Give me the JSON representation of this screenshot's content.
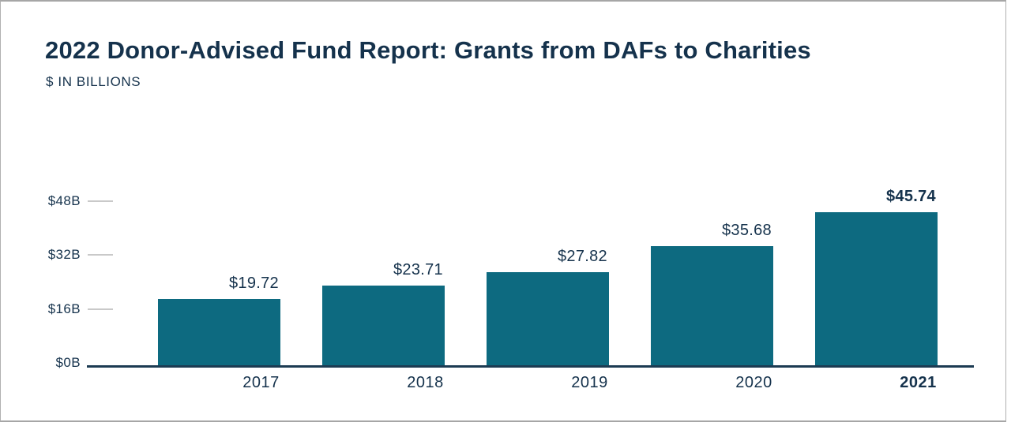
{
  "page": {
    "title": "2022 Donor-Advised Fund Report: Grants from DAFs to Charities",
    "units_label": "$ IN BILLIONS"
  },
  "colors": {
    "bar": "#0d6a80",
    "text": "#15324c",
    "axis_line": "#1c3b52",
    "tick": "#c9c9c9",
    "frame_border": "#b0b0b0"
  },
  "chart_data": {
    "type": "bar",
    "title": "2022 Donor-Advised Fund Report: Grants from DAFs to Charities",
    "subtitle": "$ IN BILLIONS",
    "categories": [
      "2017",
      "2018",
      "2019",
      "2020",
      "2021"
    ],
    "values": [
      19.72,
      23.71,
      27.82,
      35.68,
      45.74
    ],
    "value_labels": [
      "$19.72",
      "$23.71",
      "$27.82",
      "$35.68",
      "$45.74"
    ],
    "emphasized_category": "2021",
    "xlabel": "",
    "ylabel": "$ IN BILLIONS",
    "ylim": [
      0,
      52
    ],
    "y_ticks": [
      {
        "label": "$0B",
        "value": 0
      },
      {
        "label": "$16B",
        "value": 16
      },
      {
        "label": "$32B",
        "value": 32
      },
      {
        "label": "$48B",
        "value": 48
      }
    ],
    "grid": "off",
    "legend": "none",
    "bar_color": "#0d6a80"
  }
}
